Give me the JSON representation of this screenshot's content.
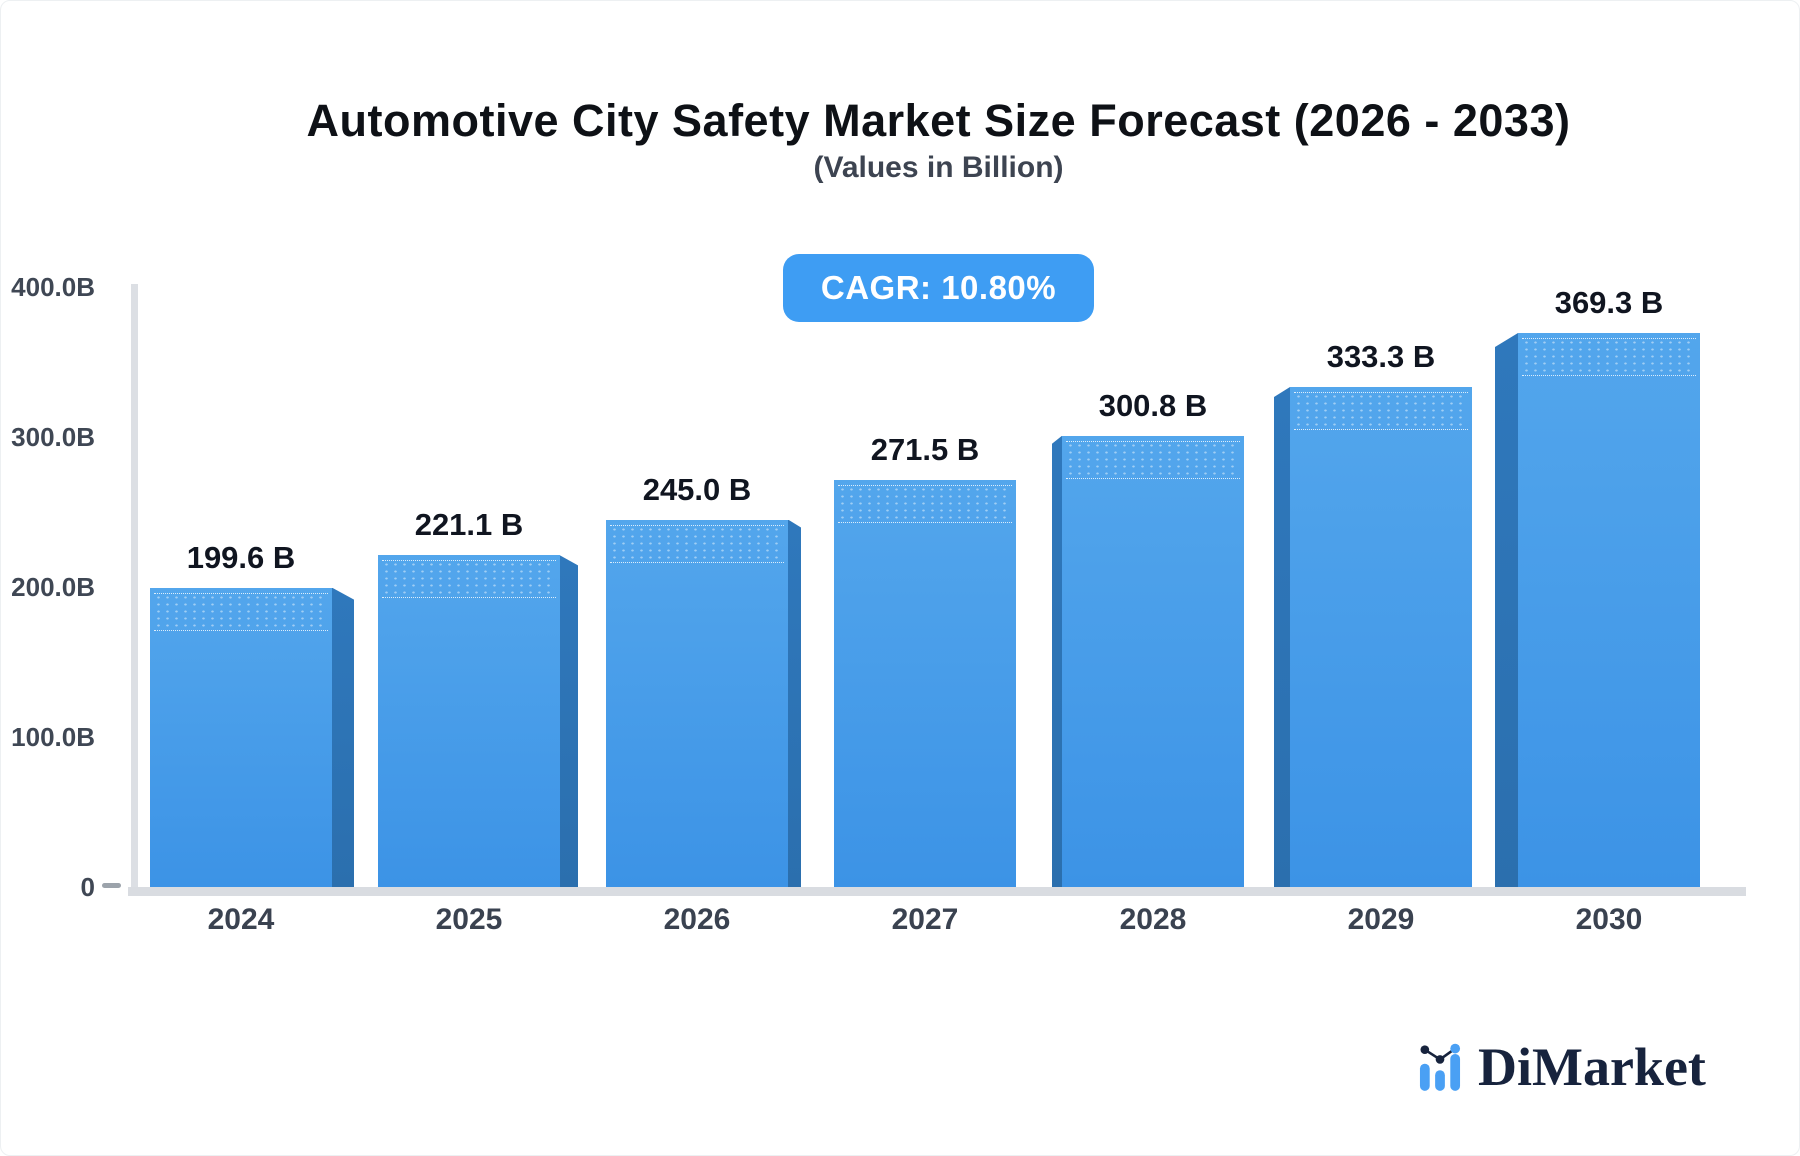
{
  "title": "Automotive City Safety Market Size Forecast (2026 - 2033)",
  "subtitle": "(Values in Billion)",
  "cagr_badge": "CAGR: 10.80%",
  "brand": {
    "name": "DiMarket",
    "icon": "bar-line-chart-icon",
    "navy": "#17233d",
    "blue": "#4aa0f4"
  },
  "colors": {
    "bar_face_top": "#53a6ec",
    "bar_face_bottom": "#3c93e6",
    "bar_side_top": "#2f78bc",
    "bar_side_bottom": "#2b6fae",
    "badge_bg": "#3e9df3",
    "axis": "#d9dce1",
    "tick_text": "#3f4754",
    "label_text": "#101520"
  },
  "chart_data": {
    "type": "bar",
    "categories": [
      "2024",
      "2025",
      "2026",
      "2027",
      "2028",
      "2029",
      "2030"
    ],
    "values": [
      199.6,
      221.1,
      245.0,
      271.5,
      300.8,
      333.3,
      369.3
    ],
    "bar_labels": [
      "199.6 B",
      "221.1 B",
      "245.0 B",
      "271.5 B",
      "300.8 B",
      "333.3 B",
      "369.3 B"
    ],
    "title": "Automotive City Safety Market Size Forecast (2026 - 2033)",
    "subtitle": "(Values in Billion)",
    "annotation": "CAGR: 10.80%",
    "xlabel": "",
    "ylabel": "",
    "unit": "Billion",
    "ylim": [
      0,
      400
    ],
    "y_ticks": [
      {
        "label": "400.0B",
        "value": 400
      },
      {
        "label": "300.0B",
        "value": 300
      },
      {
        "label": "200.0B",
        "value": 200
      },
      {
        "label": "100.0B",
        "value": 100
      },
      {
        "label": "0",
        "value": 0
      }
    ],
    "grid": false,
    "legend_position": "none",
    "bar_style": "3d-perspective-blue"
  }
}
